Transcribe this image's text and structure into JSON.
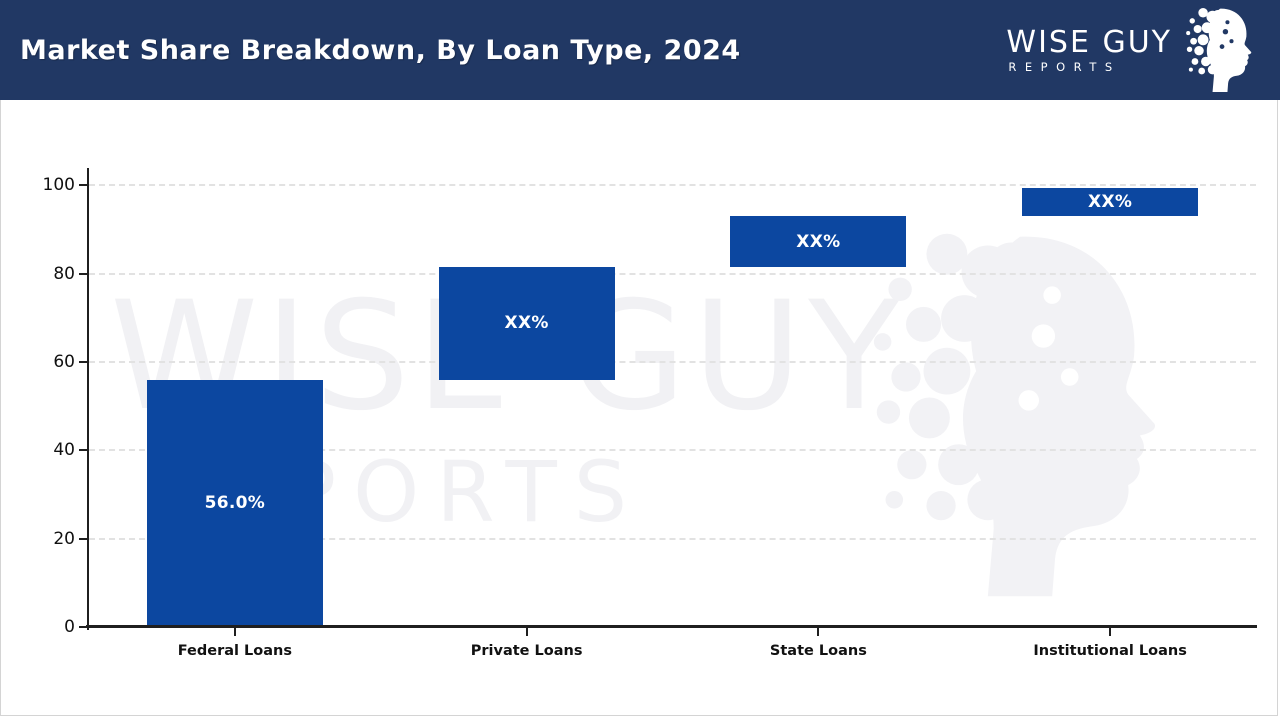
{
  "header": {
    "title": "Market Share Breakdown, By Loan Type, 2024",
    "logo": {
      "line1": "WISE GUY",
      "line2": "REPORTS"
    }
  },
  "watermark": {
    "line1": "WISE GUY",
    "line2": "REPORTS"
  },
  "colors": {
    "header_bg": "#213864",
    "bar": "#0c47a0",
    "grid": "#e2e2e2",
    "axis": "#1f1f1f",
    "value_label": "#ffffff",
    "watermark": "#f1f1f4",
    "frame_border": "#d4d4d4"
  },
  "chart_data": {
    "type": "bar",
    "subtype": "waterfall",
    "title": "Market Share Breakdown, By Loan Type, 2024",
    "categories": [
      "Federal Loans",
      "Private Loans",
      "State Loans",
      "Institutional Loans"
    ],
    "segments": [
      {
        "category": "Federal Loans",
        "start": 0,
        "end": 56,
        "label": "56.0%"
      },
      {
        "category": "Private Loans",
        "start": 56,
        "end": 81.5,
        "label": "XX%"
      },
      {
        "category": "State Loans",
        "start": 81.5,
        "end": 93,
        "label": "XX%"
      },
      {
        "category": "Institutional Loans",
        "start": 93,
        "end": 99.5,
        "label": "XX%"
      }
    ],
    "xlabel": "",
    "ylabel": "",
    "ylim": [
      0,
      100
    ],
    "yticks": [
      0,
      20,
      40,
      60,
      80,
      100
    ],
    "grid": "dashed-horizontal",
    "legend": "none"
  }
}
